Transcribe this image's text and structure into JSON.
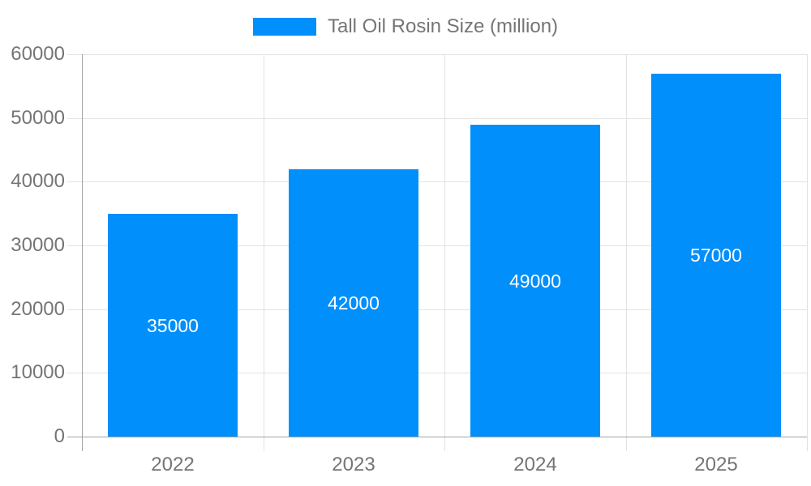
{
  "chart_data": {
    "type": "bar",
    "title": "Tall Oil Rosin Size (million)",
    "legend_position": "top",
    "categories": [
      "2022",
      "2023",
      "2024",
      "2025"
    ],
    "series": [
      {
        "name": "Tall Oil Rosin Size (million)",
        "values": [
          35000,
          42000,
          49000,
          57000
        ]
      }
    ],
    "bar_labels": [
      "35000",
      "42000",
      "49000",
      "57000"
    ],
    "xlabel": "",
    "ylabel": "",
    "ylim": [
      0,
      60000
    ],
    "ytick_interval": 10000,
    "ytick_labels": [
      "0",
      "10000",
      "20000",
      "30000",
      "40000",
      "50000",
      "60000"
    ],
    "grid": true,
    "colors": {
      "bar": "#008FFB",
      "axis_label": "#757575",
      "grid_line": "#e2e2e2",
      "axis_line": "#a3a3a3",
      "bar_label": "#ffffff",
      "background": "#ffffff"
    }
  }
}
